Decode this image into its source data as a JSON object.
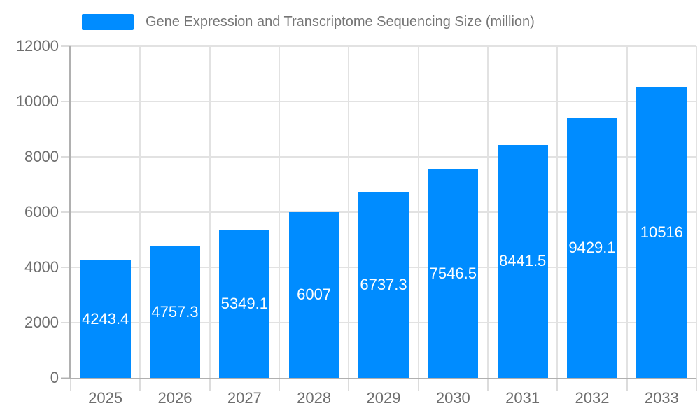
{
  "legend": {
    "label": "Gene Expression and Transcriptome Sequencing Size (million)"
  },
  "chart_data": {
    "type": "bar",
    "title": "Gene Expression and Transcriptome Sequencing Size (million)",
    "categories": [
      "2025",
      "2026",
      "2027",
      "2028",
      "2029",
      "2030",
      "2031",
      "2032",
      "2033"
    ],
    "values": [
      4243.4,
      4757.3,
      5349.1,
      6007,
      6737.3,
      7546.5,
      8441.5,
      9429.1,
      10516
    ],
    "value_labels": [
      "4243.4",
      "4757.3",
      "5349.1",
      "6007",
      "6737.3",
      "7546.5",
      "8441.5",
      "9429.1",
      "10516"
    ],
    "xlabel": "",
    "ylabel": "",
    "ylim": [
      0,
      12000
    ],
    "yticks": [
      0,
      2000,
      4000,
      6000,
      8000,
      10000,
      12000
    ],
    "grid": true,
    "legend_position": "top"
  },
  "colors": {
    "bar": "#008CFF",
    "bar_label": "#FFFFFF",
    "axis_label": "#6E6E6E",
    "title": "#757575",
    "gridline": "#E2E2E2",
    "tick": "#DCDCDC",
    "axis_line": "#B0B0B0",
    "background": "#FFFFFF"
  }
}
